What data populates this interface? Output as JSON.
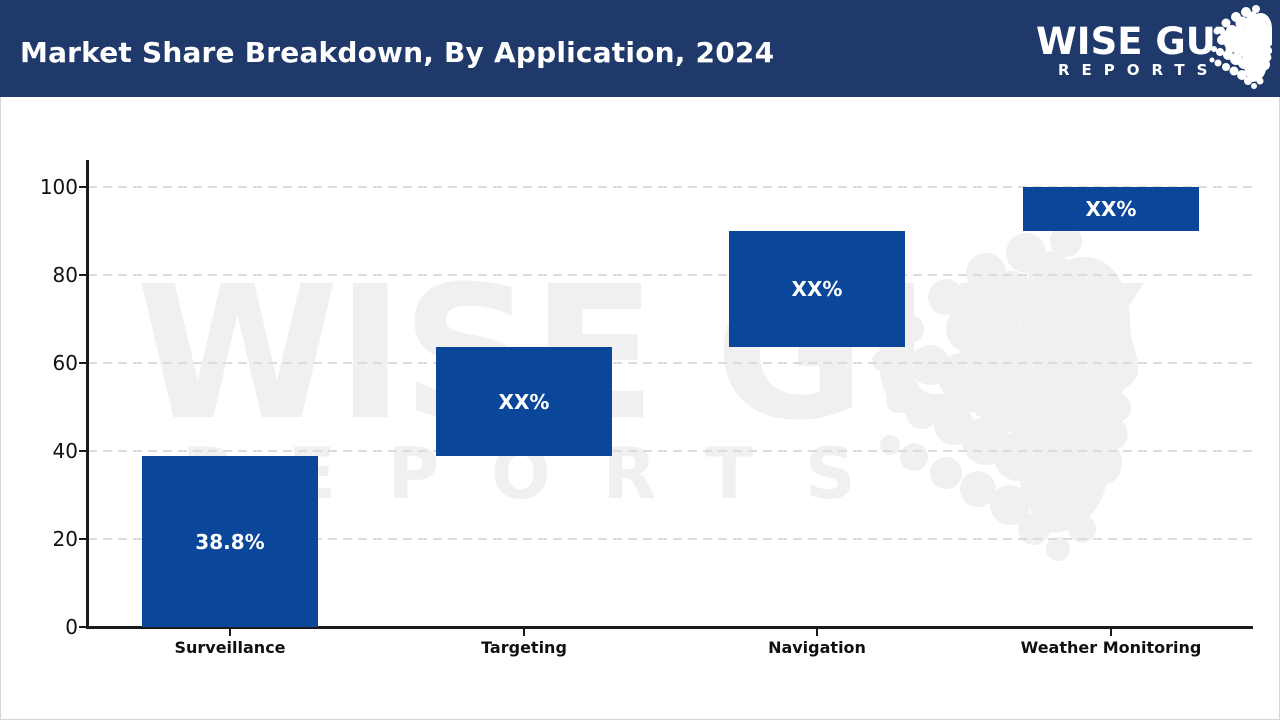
{
  "header": {
    "title": "Market Share Breakdown, By Application, 2024",
    "logo": {
      "line1": "WISE GUY",
      "line2": "REPORTS"
    }
  },
  "watermark": {
    "line1": "WISE GUY",
    "line2": "REPORTS"
  },
  "colors": {
    "header_bg": "#20396b",
    "bar": "#0a4699",
    "bar_label": "#ffffff",
    "grid": "#dcdcdc",
    "axis": "#1a1a1a",
    "watermark": "#f0f0f0",
    "title_text": "#ffffff"
  },
  "chart_data": {
    "type": "bar",
    "subtype": "waterfall",
    "title": "Market Share Breakdown, By Application, 2024",
    "categories": [
      "Surveillance",
      "Targeting",
      "Navigation",
      "Weather Monitoring"
    ],
    "segments": [
      {
        "category": "Surveillance",
        "start": 0,
        "end": 38.8,
        "label": "38.8%"
      },
      {
        "category": "Targeting",
        "start": 38.8,
        "end": 63.6,
        "label": "XX%"
      },
      {
        "category": "Navigation",
        "start": 63.6,
        "end": 90.0,
        "label": "XX%"
      },
      {
        "category": "Weather Monitoring",
        "start": 90.0,
        "end": 100.0,
        "label": "XX%"
      }
    ],
    "yticks": [
      0,
      20,
      40,
      60,
      80,
      100
    ],
    "ylim": [
      0,
      106
    ],
    "xlabel": "",
    "ylabel": "",
    "grid": "horizontal-dashed",
    "legend": "none",
    "bar_color": "#0a4699"
  }
}
